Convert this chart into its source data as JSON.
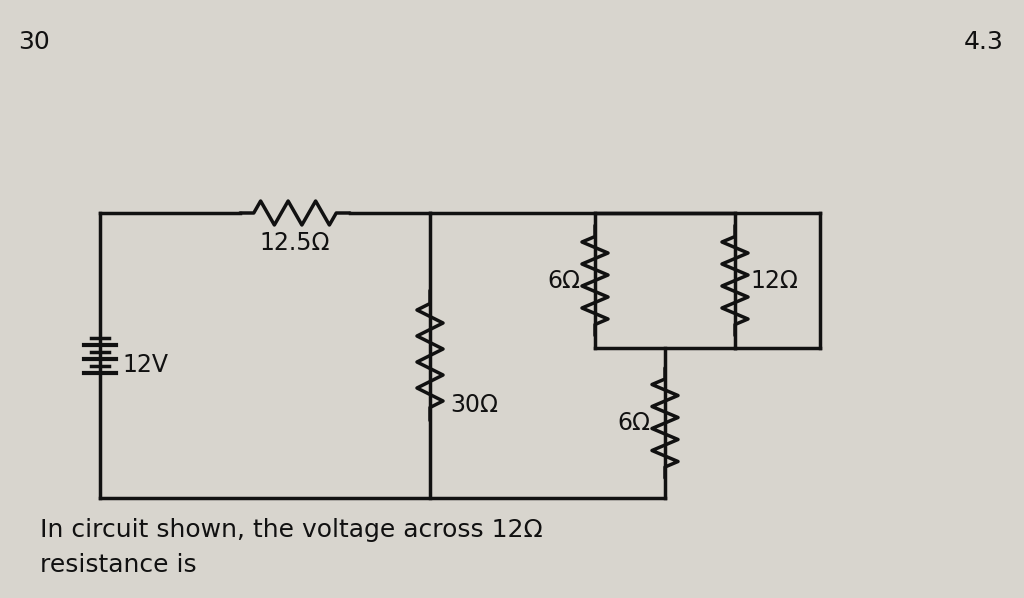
{
  "bg_color": "#d8d5ce",
  "text_color": "#111111",
  "top_left_label": "30",
  "top_right_label": "4.3",
  "bottom_text_line1": "In circuit shown, the voltage across 12Ω",
  "bottom_text_line2": "resistance is",
  "r1_label": "12.5Ω",
  "r2_label": "30Ω",
  "r3_label": "6Ω",
  "r4_label": "12Ω",
  "r5_label": "6Ω",
  "battery_label": "12V",
  "line_color": "#111111",
  "line_width": 2.5,
  "figsize": [
    10.24,
    5.98
  ],
  "dpi": 100
}
